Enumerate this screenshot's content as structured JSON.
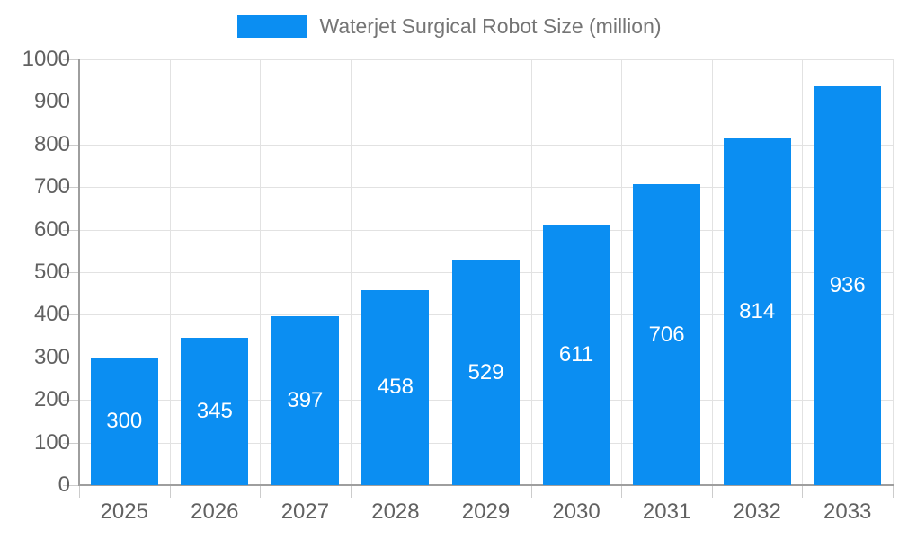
{
  "chart_data": {
    "type": "bar",
    "title": "Waterjet Surgical Robot Size (million)",
    "categories": [
      "2025",
      "2026",
      "2027",
      "2028",
      "2029",
      "2030",
      "2031",
      "2032",
      "2033"
    ],
    "values": [
      300,
      345,
      397,
      458,
      529,
      611,
      706,
      814,
      936
    ],
    "xlabel": "",
    "ylabel": "",
    "ylim": [
      0,
      1000
    ],
    "yticks": [
      0,
      100,
      200,
      300,
      400,
      500,
      600,
      700,
      800,
      900,
      1000
    ],
    "grid": true,
    "legend_position": "top",
    "value_labels": "inside-center",
    "bar_color": "#0b8ef2",
    "value_label_color": "#ffffff",
    "axis_label_color": "#616161",
    "legend_text_color": "#757575",
    "grid_color": "#e2e2e2",
    "tick_color": "#cccccc",
    "axis_line_color": "#9e9e9e",
    "background_color": "#ffffff"
  }
}
